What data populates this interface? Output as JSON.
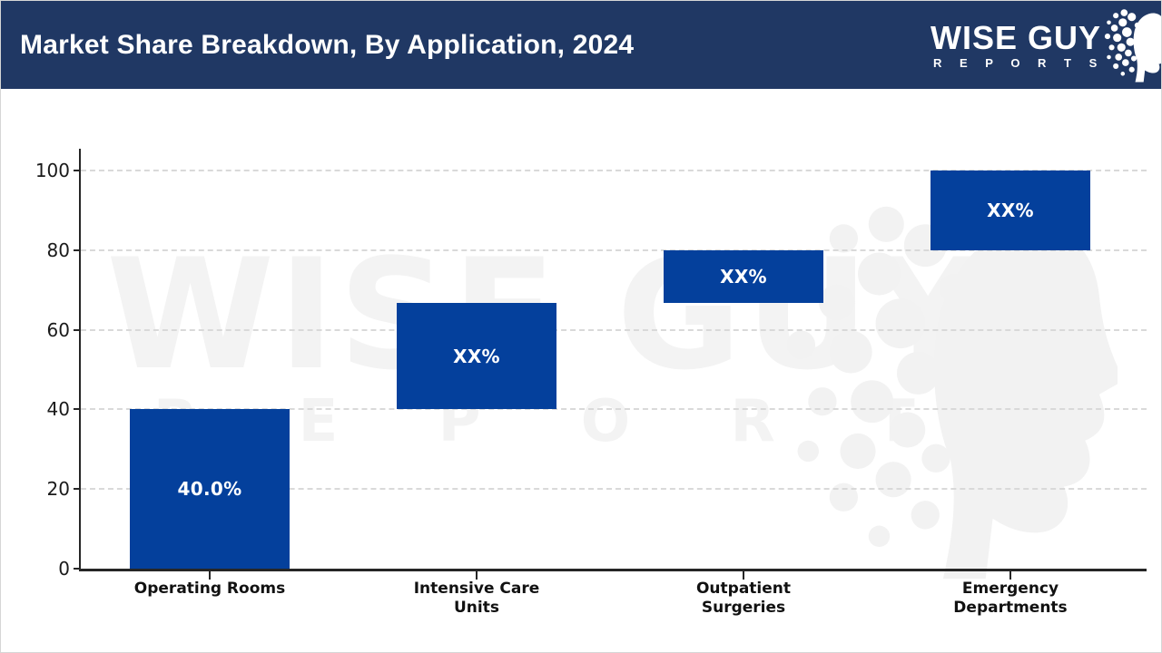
{
  "header": {
    "title": "Market Share Breakdown, By Application, 2024",
    "logo": {
      "brand": "WISE GUY",
      "sub": "R E P O R T S"
    }
  },
  "watermark": {
    "brand": "WISE GUY",
    "sub": "R E P O R T S"
  },
  "chart_data": {
    "type": "bar",
    "subtype": "waterfall-floating-bars",
    "title": "Market Share Breakdown, By Application, 2024",
    "categories": [
      "Operating Rooms",
      "Intensive Care Units",
      "Outpatient Surgeries",
      "Emergency Departments"
    ],
    "series": [
      {
        "name": "Market Share",
        "segments": [
          {
            "category": "Operating Rooms",
            "start": 0,
            "end": 40,
            "label": "40.0%"
          },
          {
            "category": "Intensive Care Units",
            "start": 40,
            "end": 66.7,
            "label": "XX%"
          },
          {
            "category": "Outpatient Surgeries",
            "start": 66.7,
            "end": 80,
            "label": "XX%"
          },
          {
            "category": "Emergency Departments",
            "start": 80,
            "end": 100,
            "label": "XX%"
          }
        ]
      }
    ],
    "xlabel": "",
    "ylabel": "",
    "ylim": [
      0,
      100
    ],
    "yticks": [
      0,
      20,
      40,
      60,
      80,
      100
    ],
    "grid": "horizontal-dashed",
    "legend": "none"
  },
  "colors": {
    "header_bg": "#203864",
    "bar": "#04409c",
    "bar_label": "#ffffff",
    "axis": "#262626",
    "grid": "#d9d9d9",
    "watermark": "#f3f3f3",
    "text": "#111111"
  }
}
